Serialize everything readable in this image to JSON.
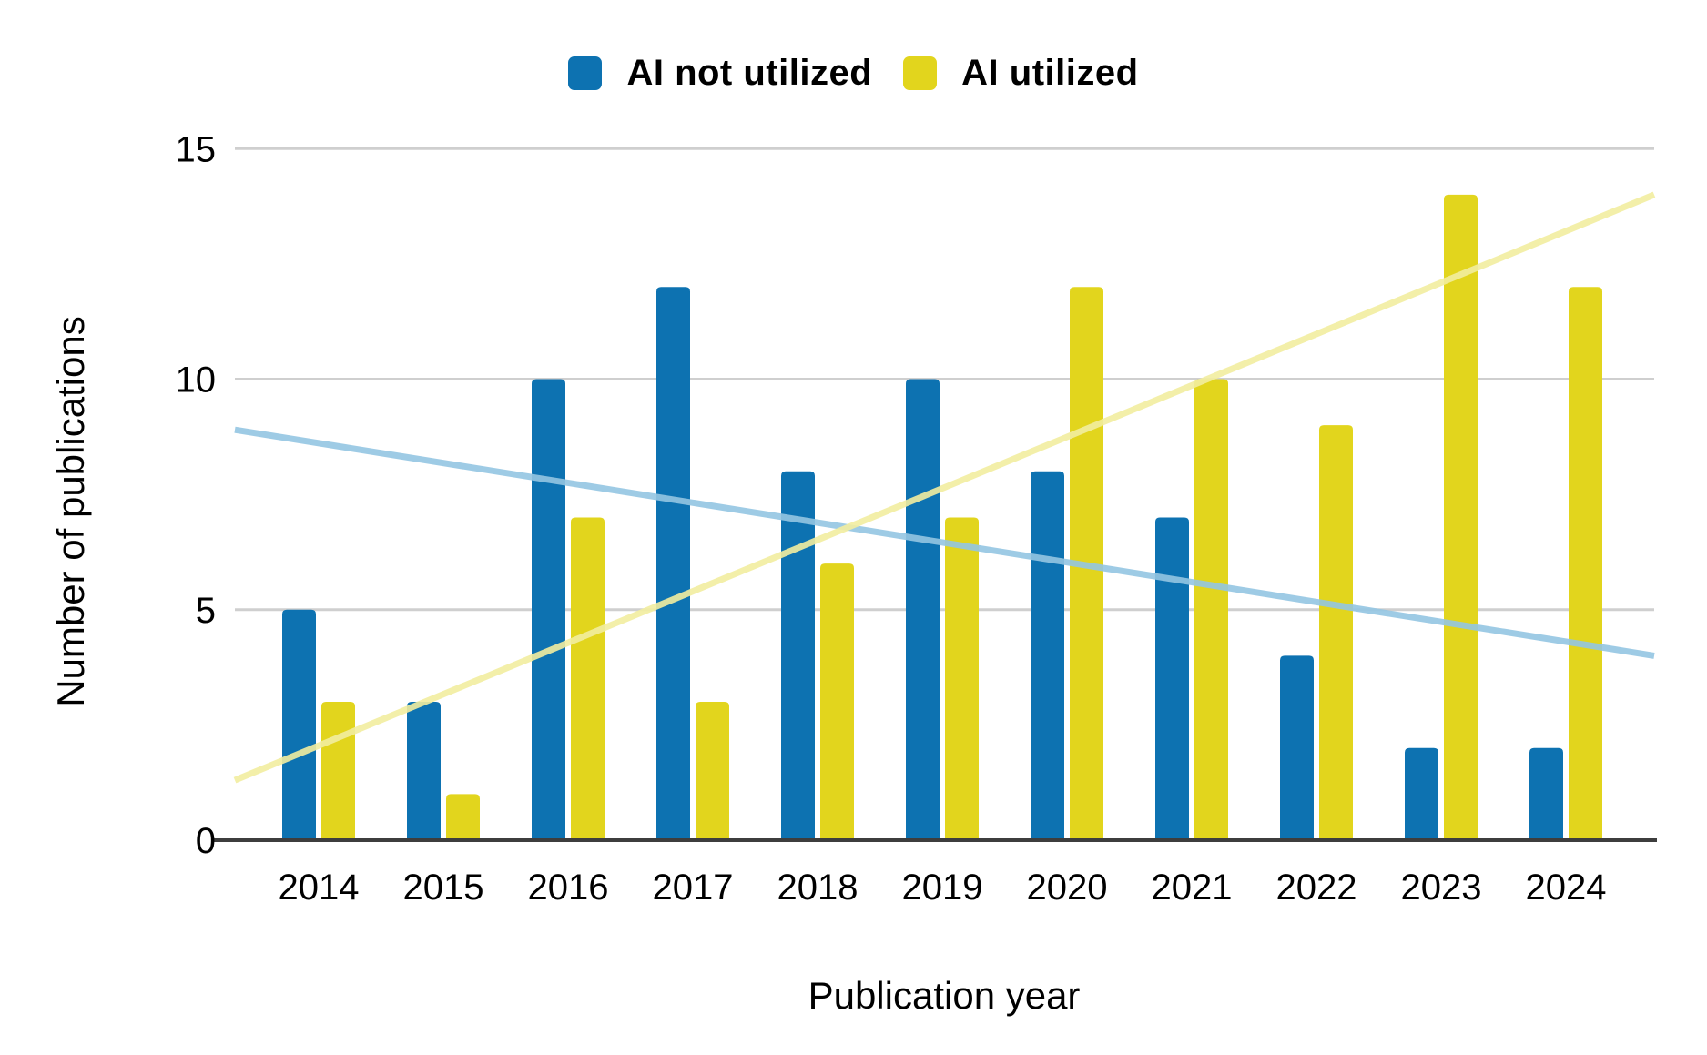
{
  "legend": [
    {
      "label": "AI not utilized",
      "color": "#0d72b1"
    },
    {
      "label": "AI utilized",
      "color": "#e2d51d"
    }
  ],
  "chart_data": {
    "type": "bar",
    "title": "",
    "xlabel": "Publication year",
    "ylabel": "Number of publications",
    "categories": [
      "2014",
      "2015",
      "2016",
      "2017",
      "2018",
      "2019",
      "2020",
      "2021",
      "2022",
      "2023",
      "2024"
    ],
    "series": [
      {
        "name": "AI not utilized",
        "color": "#0d72b1",
        "values": [
          5,
          3,
          10,
          12,
          8,
          10,
          8,
          7,
          4,
          2,
          2
        ]
      },
      {
        "name": "AI utilized",
        "color": "#e2d51d",
        "values": [
          3,
          1,
          7,
          3,
          6,
          7,
          12,
          10,
          9,
          14,
          12
        ]
      }
    ],
    "trendlines": [
      {
        "series": "AI not utilized",
        "color": "#94c5e2",
        "start": 8.9,
        "end": 4.0
      },
      {
        "series": "AI utilized",
        "color": "#f2eda0",
        "start": 1.3,
        "end": 14.0
      }
    ],
    "ylim": [
      0,
      15
    ],
    "yticks": [
      0,
      5,
      10,
      15
    ],
    "grid": true,
    "legend_position": "top"
  }
}
